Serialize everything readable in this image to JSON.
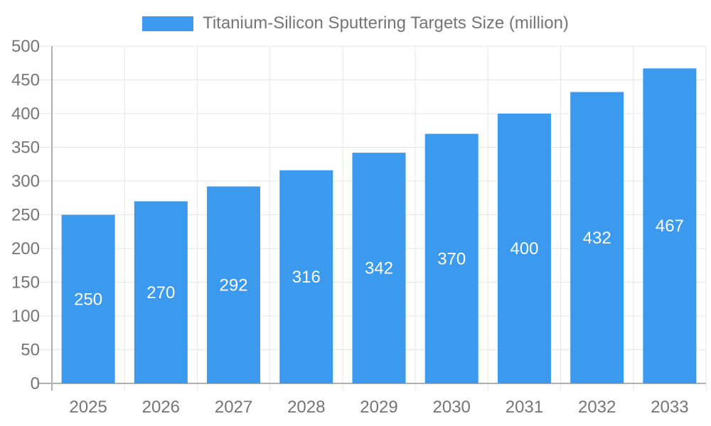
{
  "chart_data": {
    "type": "bar",
    "title": "Titanium-Silicon Sputtering Targets Size (million)",
    "categories": [
      "2025",
      "2026",
      "2027",
      "2028",
      "2029",
      "2030",
      "2031",
      "2032",
      "2033"
    ],
    "values": [
      250,
      270,
      292,
      316,
      342,
      370,
      400,
      432,
      467
    ],
    "xlabel": "",
    "ylabel": "",
    "ylim": [
      0,
      500
    ],
    "ytick_step": 50,
    "ytick_labels": [
      "0",
      "50",
      "100",
      "150",
      "200",
      "250",
      "300",
      "350",
      "400",
      "450",
      "500"
    ],
    "grid": "on",
    "legend_position": "top-center",
    "value_labels": "inside-middle",
    "colors": {
      "bar": "#3b99ee",
      "grid": "#e6e6e6",
      "axis": "#b0b0b0",
      "text": "#757575",
      "value_label": "#ffffff",
      "background": "#ffffff"
    }
  }
}
